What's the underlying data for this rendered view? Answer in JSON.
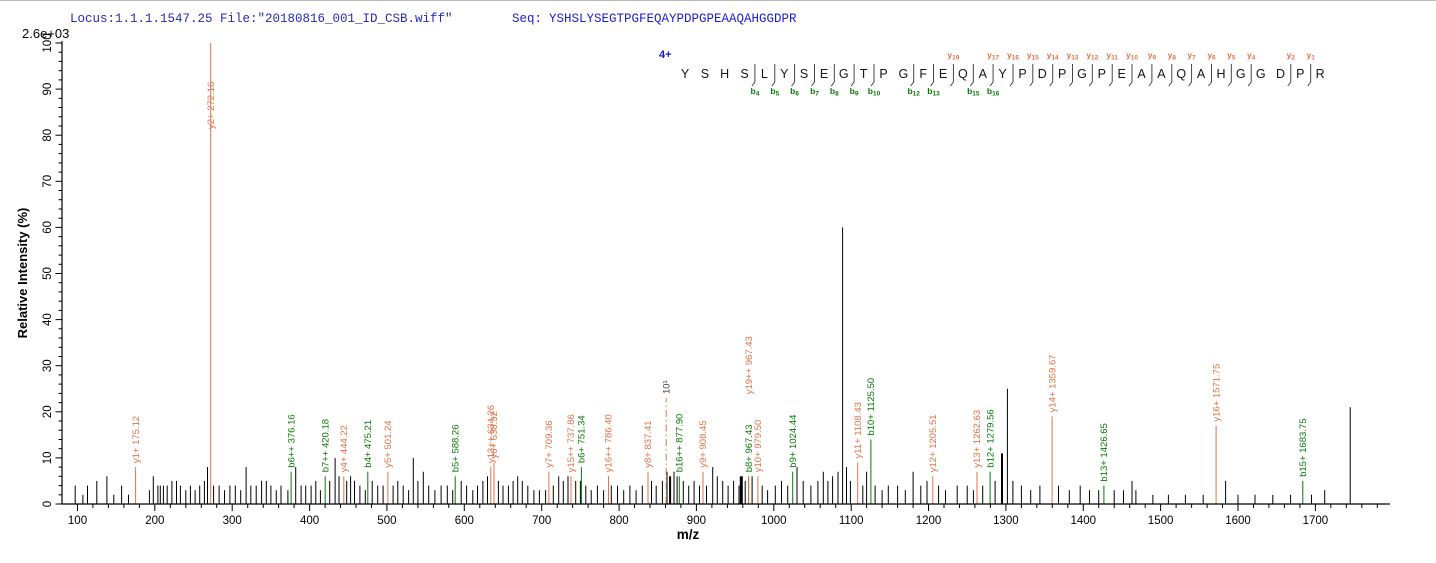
{
  "header": {
    "locus_file": "Locus:1.1.1.1547.25 File:\"20180816_001_ID_CSB.wiff\"",
    "seq_label": "Seq:",
    "sequence": "YSHSLYSEGTPGFEQAYPDPGPEAAQAHGGDPR"
  },
  "sequence_annotation": {
    "charge": "4+",
    "peptide": "YSHSLYSEGTPGFEQAYPDPGPEAAQAHGGDPR",
    "residues": [
      {
        "aa": "Y"
      },
      {
        "aa": "S"
      },
      {
        "aa": "H"
      },
      {
        "aa": "S"
      },
      {
        "aa": "L",
        "b": "b4"
      },
      {
        "aa": "Y",
        "b": "b5"
      },
      {
        "aa": "S",
        "b": "b6"
      },
      {
        "aa": "E",
        "b": "b7"
      },
      {
        "aa": "G",
        "b": "b8"
      },
      {
        "aa": "T",
        "b": "b9"
      },
      {
        "aa": "P",
        "b": "b10"
      },
      {
        "aa": "G"
      },
      {
        "aa": "F",
        "b": "b12"
      },
      {
        "aa": "E",
        "b": "b13"
      },
      {
        "aa": "Q",
        "y": "y19"
      },
      {
        "aa": "A",
        "b": "b15"
      },
      {
        "aa": "Y",
        "b": "b16",
        "y": "y17"
      },
      {
        "aa": "P",
        "y": "y16"
      },
      {
        "aa": "D",
        "y": "y15"
      },
      {
        "aa": "P",
        "y": "y14"
      },
      {
        "aa": "G",
        "y": "y13"
      },
      {
        "aa": "P",
        "y": "y12"
      },
      {
        "aa": "E",
        "y": "y11"
      },
      {
        "aa": "A",
        "y": "y10"
      },
      {
        "aa": "A",
        "y": "y9"
      },
      {
        "aa": "Q",
        "y": "y8"
      },
      {
        "aa": "A",
        "y": "y7"
      },
      {
        "aa": "H",
        "y": "y6"
      },
      {
        "aa": "G",
        "y": "y5"
      },
      {
        "aa": "G",
        "y": "y4"
      },
      {
        "aa": "D"
      },
      {
        "aa": "P",
        "y": "y2"
      },
      {
        "aa": "R",
        "y": "y1"
      }
    ]
  },
  "chart_data": {
    "type": "bar",
    "subtype": "centroided-ms2-mass-spectrum",
    "title": "",
    "xlabel": "m/z",
    "ylabel": "Relative  Intensity (%)",
    "y_axis_top_note": "2.6e+03",
    "xlim": [
      80,
      1790
    ],
    "ylim": [
      0,
      100
    ],
    "grid": false,
    "x_ticks_major": [
      100,
      200,
      300,
      400,
      500,
      600,
      700,
      800,
      900,
      1000,
      1100,
      1200,
      1300,
      1400,
      1500,
      1600,
      1700
    ],
    "x_minor_step": 20,
    "y_ticks_major": [
      0,
      10,
      20,
      30,
      40,
      50,
      60,
      70,
      80,
      90,
      100
    ],
    "y_minor_step": 2,
    "series_colors": {
      "y": "#e07348",
      "b": "#087a08",
      "precursor": "#e07348"
    },
    "annotated_peaks": [
      {
        "label": "y1+ 175.12",
        "ion": "y1+",
        "mz": 175.12,
        "intensity_pct": 8,
        "series": "y"
      },
      {
        "label": "y2+ 272.16",
        "ion": "y2+",
        "mz": 272.16,
        "intensity_pct": 100,
        "series": "y",
        "label_y": 128
      },
      {
        "label": "b6++ 376.16",
        "ion": "b6++",
        "mz": 376.16,
        "intensity_pct": 7,
        "series": "b"
      },
      {
        "label": "b7++ 420.18",
        "ion": "b7++",
        "mz": 420.18,
        "intensity_pct": 6,
        "series": "b"
      },
      {
        "label": "y4+ 444.22",
        "ion": "y4+",
        "mz": 444.22,
        "intensity_pct": 6,
        "series": "y"
      },
      {
        "label": "b4+ 475.21",
        "ion": "b4+",
        "mz": 475.21,
        "intensity_pct": 7,
        "series": "b"
      },
      {
        "label": "y5+ 501.24",
        "ion": "y5+",
        "mz": 501.24,
        "intensity_pct": 7,
        "series": "y"
      },
      {
        "label": "b5+ 588.26",
        "ion": "b5+",
        "mz": 588.26,
        "intensity_pct": 6,
        "series": "b"
      },
      {
        "label": "y13++ 634.26",
        "ion": "y13++",
        "mz": 634.26,
        "intensity_pct": 8,
        "series": "y",
        "obscured": true
      },
      {
        "label": "y6+ 638.32",
        "ion": "y6+",
        "mz": 638.32,
        "intensity_pct": 9,
        "series": "y"
      },
      {
        "label": "y7+ 709.36",
        "ion": "y7+",
        "mz": 709.36,
        "intensity_pct": 7,
        "series": "y"
      },
      {
        "label": "y15++ 737.86",
        "ion": "y15++",
        "mz": 737.86,
        "intensity_pct": 6,
        "series": "y"
      },
      {
        "label": "b6+ 751.34",
        "ion": "b6+",
        "mz": 751.34,
        "intensity_pct": 8,
        "series": "b"
      },
      {
        "label": "y16++ 786.40",
        "ion": "y16++",
        "mz": 786.4,
        "intensity_pct": 6,
        "series": "y"
      },
      {
        "label": "y8+ 837.41",
        "ion": "y8+",
        "mz": 837.41,
        "intensity_pct": 7,
        "series": "y"
      },
      {
        "label": "10¹",
        "ion": "precursor-marker",
        "mz": 861,
        "intensity_pct": 23,
        "series": "precursor",
        "style": "dashdot",
        "obscured": true
      },
      {
        "label": "b16++ 877.90",
        "ion": "b16++",
        "mz": 877.9,
        "intensity_pct": 6,
        "series": "b"
      },
      {
        "label": "y9+ 908.45",
        "ion": "y9+",
        "mz": 908.45,
        "intensity_pct": 7,
        "series": "y"
      },
      {
        "label": "b8+ 967.43",
        "ion": "b8+",
        "mz": 967.43,
        "intensity_pct": 6,
        "series": "b"
      },
      {
        "label": "y19++ 967.43",
        "ion": "y19++",
        "mz": 967.43,
        "intensity_pct": 6,
        "series": "y",
        "label_offset": 78
      },
      {
        "label": "y10+ 979.50",
        "ion": "y10+",
        "mz": 979.5,
        "intensity_pct": 6,
        "series": "y"
      },
      {
        "label": "b9+ 1024.44",
        "ion": "b9+",
        "mz": 1024.44,
        "intensity_pct": 7,
        "series": "b"
      },
      {
        "label": "y11+ 1108.43",
        "ion": "y11+",
        "mz": 1108.43,
        "intensity_pct": 9,
        "series": "y"
      },
      {
        "label": "b10+ 1125.50",
        "ion": "b10+",
        "mz": 1125.5,
        "intensity_pct": 14,
        "series": "b"
      },
      {
        "label": "y12+ 1205.51",
        "ion": "y12+",
        "mz": 1205.51,
        "intensity_pct": 6,
        "series": "y"
      },
      {
        "label": "y13+ 1262.63",
        "ion": "y13+",
        "mz": 1262.63,
        "intensity_pct": 7,
        "series": "y"
      },
      {
        "label": "b12+ 1279.56",
        "ion": "b12+",
        "mz": 1279.56,
        "intensity_pct": 7,
        "series": "b"
      },
      {
        "label": "y14+ 1359.67",
        "ion": "y14+",
        "mz": 1359.67,
        "intensity_pct": 19,
        "series": "y"
      },
      {
        "label": "b13+ 1426.65",
        "ion": "b13+",
        "mz": 1426.65,
        "intensity_pct": 4,
        "series": "b"
      },
      {
        "label": "y16+ 1571.75",
        "ion": "y16+",
        "mz": 1571.75,
        "intensity_pct": 17,
        "series": "y"
      },
      {
        "label": "b15+ 1683.75",
        "ion": "b15+",
        "mz": 1683.75,
        "intensity_pct": 5,
        "series": "b"
      }
    ],
    "unlabeled_peaks": [
      [
        97,
        4
      ],
      [
        107,
        2
      ],
      [
        113,
        4
      ],
      [
        125,
        5
      ],
      [
        138,
        6
      ],
      [
        147,
        2
      ],
      [
        157,
        4
      ],
      [
        166,
        2
      ],
      [
        193,
        3
      ],
      [
        198,
        6
      ],
      [
        204,
        4
      ],
      [
        207,
        4
      ],
      [
        211,
        4
      ],
      [
        216,
        4
      ],
      [
        222,
        5
      ],
      [
        228,
        5
      ],
      [
        233,
        4
      ],
      [
        240,
        3
      ],
      [
        246,
        4
      ],
      [
        252,
        3
      ],
      [
        258,
        4
      ],
      [
        264,
        5
      ],
      [
        268,
        8
      ],
      [
        276,
        4
      ],
      [
        283,
        4
      ],
      [
        290,
        3
      ],
      [
        297,
        4
      ],
      [
        304,
        4
      ],
      [
        311,
        3
      ],
      [
        318,
        8
      ],
      [
        324,
        4
      ],
      [
        331,
        4
      ],
      [
        338,
        5
      ],
      [
        344,
        5
      ],
      [
        350,
        4
      ],
      [
        357,
        3
      ],
      [
        363,
        4
      ],
      [
        372,
        3
      ],
      [
        382,
        8
      ],
      [
        389,
        4
      ],
      [
        395,
        4
      ],
      [
        402,
        4
      ],
      [
        408,
        5
      ],
      [
        414,
        3
      ],
      [
        426,
        5
      ],
      [
        433,
        10
      ],
      [
        438,
        6
      ],
      [
        448,
        5
      ],
      [
        453,
        6
      ],
      [
        458,
        5
      ],
      [
        465,
        4
      ],
      [
        472,
        3
      ],
      [
        481,
        5
      ],
      [
        488,
        4
      ],
      [
        495,
        4
      ],
      [
        508,
        4
      ],
      [
        514,
        5
      ],
      [
        521,
        4
      ],
      [
        528,
        3
      ],
      [
        534,
        10
      ],
      [
        540,
        5
      ],
      [
        547,
        7
      ],
      [
        554,
        4
      ],
      [
        562,
        3
      ],
      [
        570,
        4
      ],
      [
        578,
        4
      ],
      [
        585,
        3
      ],
      [
        596,
        5
      ],
      [
        603,
        4
      ],
      [
        611,
        3
      ],
      [
        617,
        4
      ],
      [
        624,
        5
      ],
      [
        630,
        6
      ],
      [
        644,
        5
      ],
      [
        650,
        4
      ],
      [
        657,
        4
      ],
      [
        663,
        5
      ],
      [
        669,
        6
      ],
      [
        675,
        5
      ],
      [
        682,
        4
      ],
      [
        690,
        3
      ],
      [
        697,
        3
      ],
      [
        705,
        3
      ],
      [
        715,
        4
      ],
      [
        722,
        6
      ],
      [
        728,
        5
      ],
      [
        734,
        6
      ],
      [
        744,
        5
      ],
      [
        750,
        5
      ],
      [
        757,
        4
      ],
      [
        764,
        3
      ],
      [
        772,
        4
      ],
      [
        780,
        3
      ],
      [
        790,
        4
      ],
      [
        798,
        4
      ],
      [
        806,
        3
      ],
      [
        814,
        4
      ],
      [
        822,
        3
      ],
      [
        830,
        4
      ],
      [
        842,
        5
      ],
      [
        848,
        4
      ],
      [
        856,
        5
      ],
      [
        862,
        7
      ],
      [
        866,
        6,
        2
      ],
      [
        871,
        7
      ],
      [
        875,
        6
      ],
      [
        883,
        5
      ],
      [
        890,
        4
      ],
      [
        897,
        5
      ],
      [
        904,
        4
      ],
      [
        913,
        4
      ],
      [
        921,
        8
      ],
      [
        927,
        6
      ],
      [
        934,
        5
      ],
      [
        941,
        4
      ],
      [
        948,
        5
      ],
      [
        955,
        4
      ],
      [
        958,
        6,
        3
      ],
      [
        963,
        5
      ],
      [
        972,
        6
      ],
      [
        985,
        4
      ],
      [
        992,
        3
      ],
      [
        1002,
        4
      ],
      [
        1010,
        5
      ],
      [
        1018,
        4
      ],
      [
        1030,
        8
      ],
      [
        1038,
        5
      ],
      [
        1048,
        4
      ],
      [
        1057,
        5
      ],
      [
        1064,
        7
      ],
      [
        1070,
        5
      ],
      [
        1076,
        6
      ],
      [
        1083,
        7
      ],
      [
        1089,
        60
      ],
      [
        1094,
        8
      ],
      [
        1099,
        5
      ],
      [
        1115,
        4
      ],
      [
        1120,
        7
      ],
      [
        1131,
        4
      ],
      [
        1140,
        3
      ],
      [
        1148,
        4
      ],
      [
        1160,
        4
      ],
      [
        1170,
        3
      ],
      [
        1180,
        7
      ],
      [
        1190,
        4
      ],
      [
        1198,
        5
      ],
      [
        1213,
        4
      ],
      [
        1222,
        3
      ],
      [
        1237,
        4
      ],
      [
        1250,
        4
      ],
      [
        1258,
        3
      ],
      [
        1270,
        4
      ],
      [
        1286,
        5
      ],
      [
        1295,
        11,
        2
      ],
      [
        1302,
        25
      ],
      [
        1309,
        5
      ],
      [
        1320,
        4
      ],
      [
        1332,
        3
      ],
      [
        1344,
        4
      ],
      [
        1368,
        4
      ],
      [
        1382,
        3
      ],
      [
        1396,
        4
      ],
      [
        1408,
        3
      ],
      [
        1420,
        3
      ],
      [
        1440,
        3
      ],
      [
        1452,
        3
      ],
      [
        1463,
        5
      ],
      [
        1468,
        3
      ],
      [
        1490,
        2
      ],
      [
        1510,
        2
      ],
      [
        1532,
        2
      ],
      [
        1555,
        2
      ],
      [
        1584,
        5
      ],
      [
        1600,
        2
      ],
      [
        1622,
        2
      ],
      [
        1645,
        2
      ],
      [
        1668,
        2
      ],
      [
        1695,
        2
      ],
      [
        1712,
        3
      ],
      [
        1745,
        21
      ]
    ]
  }
}
